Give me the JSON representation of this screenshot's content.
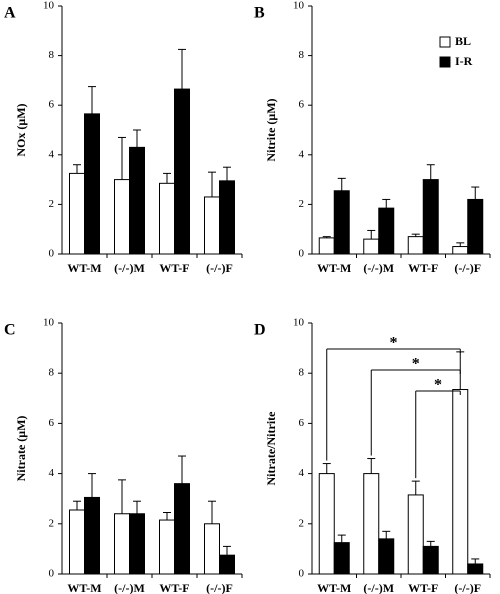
{
  "chart_data": [
    {
      "type": "bar",
      "label": "A",
      "ylabel": "NOx (μM)",
      "categories": [
        "WT-M",
        "(-/-)M",
        "WT-F",
        "(-/-)F"
      ],
      "series": [
        {
          "color": "#ffffff",
          "values": [
            3.25,
            3.0,
            2.85,
            2.3
          ],
          "errors": [
            0.35,
            1.7,
            0.4,
            1.0
          ]
        },
        {
          "color": "#000000",
          "values": [
            5.65,
            4.3,
            6.65,
            2.95
          ],
          "errors": [
            1.1,
            0.7,
            1.6,
            0.55
          ]
        }
      ],
      "ylim": [
        0,
        10
      ],
      "yticks": [
        0,
        2,
        4,
        6,
        8,
        10
      ]
    },
    {
      "type": "bar",
      "label": "B",
      "ylabel": "Nitrite (μM)",
      "categories": [
        "WT-M",
        "(-/-)M",
        "WT-F",
        "(-/-)F"
      ],
      "series": [
        {
          "name": "BL",
          "color": "#ffffff",
          "values": [
            0.65,
            0.6,
            0.7,
            0.3
          ],
          "errors": [
            0.05,
            0.35,
            0.1,
            0.15
          ]
        },
        {
          "name": "I-R",
          "color": "#000000",
          "values": [
            2.55,
            1.85,
            3.0,
            2.2
          ],
          "errors": [
            0.5,
            0.35,
            0.6,
            0.5
          ]
        }
      ],
      "ylim": [
        0,
        10
      ],
      "yticks": [
        0,
        2,
        4,
        6,
        8,
        10
      ],
      "legend": "upper right"
    },
    {
      "type": "bar",
      "label": "C",
      "ylabel": "Nitrate (μM)",
      "categories": [
        "WT-M",
        "(-/-)M",
        "WT-F",
        "(-/-)F"
      ],
      "series": [
        {
          "color": "#ffffff",
          "values": [
            2.55,
            2.4,
            2.15,
            2.0
          ],
          "errors": [
            0.35,
            1.35,
            0.3,
            0.9
          ]
        },
        {
          "color": "#000000",
          "values": [
            3.05,
            2.4,
            3.6,
            0.75
          ],
          "errors": [
            0.95,
            0.5,
            1.1,
            0.35
          ]
        }
      ],
      "ylim": [
        0,
        10
      ],
      "yticks": [
        0,
        2,
        4,
        6,
        8,
        10
      ]
    },
    {
      "type": "bar",
      "label": "D",
      "ylabel": "Nitrate/Nitrite",
      "categories": [
        "WT-M",
        "(-/-)M",
        "WT-F",
        "(-/-)F"
      ],
      "series": [
        {
          "color": "#ffffff",
          "values": [
            4.0,
            4.0,
            3.15,
            7.35
          ],
          "errors": [
            0.4,
            0.6,
            0.55,
            1.5
          ]
        },
        {
          "color": "#000000",
          "values": [
            1.25,
            1.4,
            1.1,
            0.4
          ],
          "errors": [
            0.3,
            0.3,
            0.2,
            0.2
          ]
        }
      ],
      "ylim": [
        0,
        10
      ],
      "yticks": [
        0,
        2,
        4,
        6,
        8,
        10
      ],
      "significance": [
        {
          "text": "*",
          "between": [
            0,
            3
          ]
        },
        {
          "text": "*",
          "between": [
            1,
            3
          ]
        },
        {
          "text": "*",
          "between": [
            2,
            3
          ]
        }
      ]
    }
  ]
}
